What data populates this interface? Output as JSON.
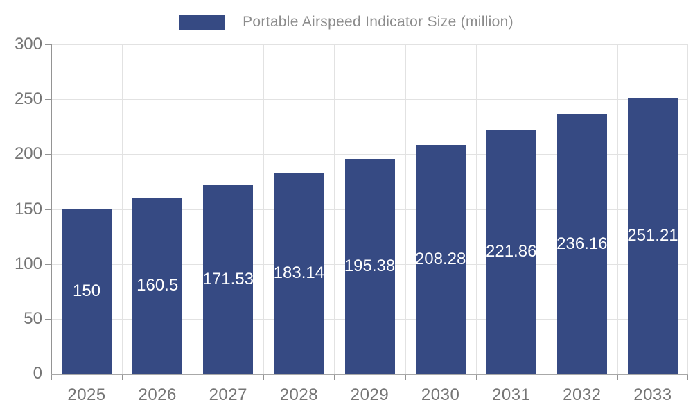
{
  "chart_data": {
    "type": "bar",
    "title": "Portable Airspeed Indicator Size (million)",
    "categories": [
      "2025",
      "2026",
      "2027",
      "2028",
      "2029",
      "2030",
      "2031",
      "2032",
      "2033"
    ],
    "series": [
      {
        "name": "Portable Airspeed Indicator Size (million)",
        "values": [
          150,
          160.5,
          171.53,
          183.14,
          195.38,
          208.28,
          221.86,
          236.16,
          251.21
        ]
      }
    ],
    "value_labels": [
      "150",
      "160.5",
      "171.53",
      "183.14",
      "195.38",
      "208.28",
      "221.86",
      "236.16",
      "251.21"
    ],
    "xlabel": "",
    "ylabel": "",
    "ylim": [
      0,
      300
    ],
    "yticks": [
      0,
      50,
      100,
      150,
      200,
      250,
      300
    ],
    "grid": true,
    "legend_position": "top",
    "colors": {
      "bar": "#364a83",
      "bar_label": "#ffffff",
      "gridline": "#e2e2e2",
      "axis_line": "#949494",
      "tick_label": "#757575",
      "legend_text": "#8c8c8c",
      "background": "#ffffff"
    }
  }
}
